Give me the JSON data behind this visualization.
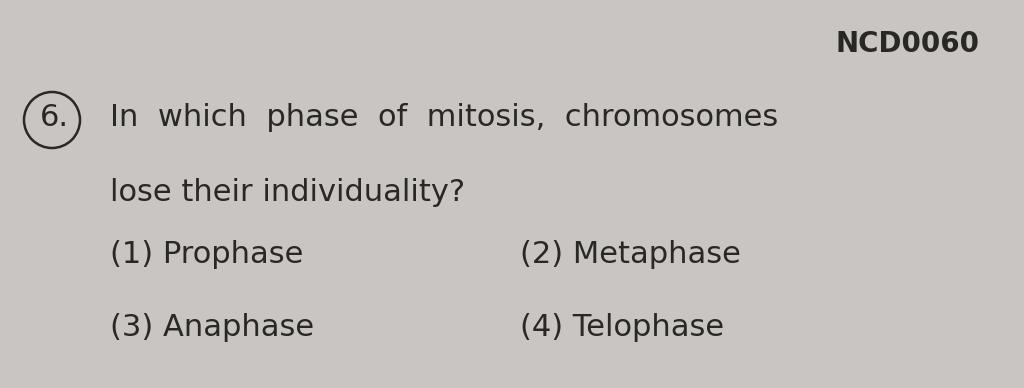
{
  "background_color": "#c8c5c2",
  "code_text": "NCD0060",
  "code_fontsize": 20,
  "code_fontweight": "bold",
  "question_number": "6.",
  "q_num_fontsize": 22,
  "question_line1": "In  which  phase  of  mitosis,  chromosomes",
  "question_line2": "lose their individuality?",
  "q_fontsize": 22,
  "opt1_text": "(1) Prophase",
  "opt2_text": "(2) Metaphase",
  "opt3_text": "(3) Anaphase",
  "opt4_text": "(4) Telophase",
  "opt_fontsize": 22,
  "text_color": "#2a2825"
}
